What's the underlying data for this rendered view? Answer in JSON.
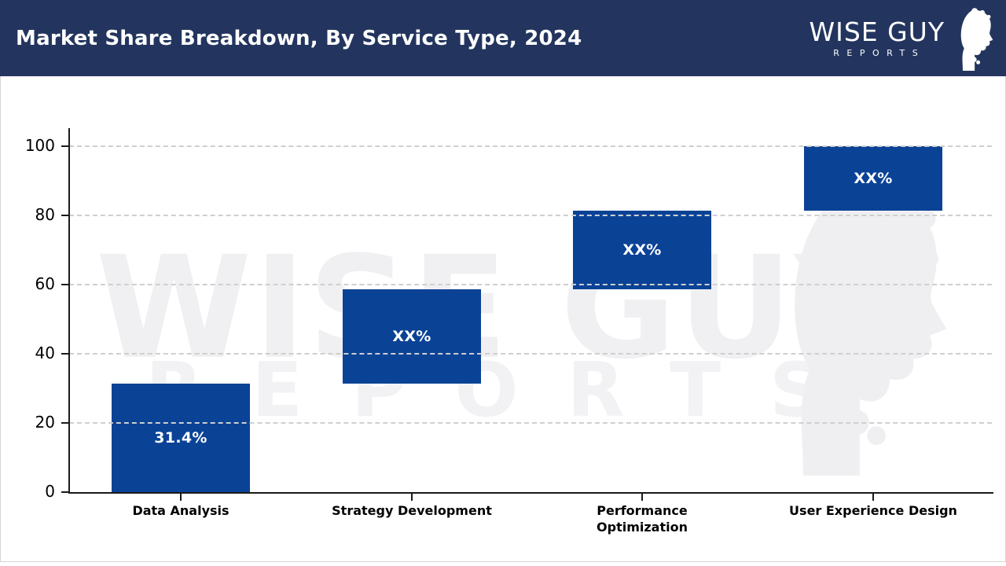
{
  "header": {
    "title": "Market Share Breakdown, By Service Type, 2024",
    "logo": {
      "line1": "WISE GUY",
      "line2": "REPORTS"
    }
  },
  "watermark": {
    "line1": "WISE GUY",
    "line2": "REPORTS"
  },
  "chart_data": {
    "type": "bar",
    "subtype": "waterfall",
    "title": "Market Share Breakdown, By Service Type, 2024",
    "categories": [
      "Data Analysis",
      "Strategy Development",
      "Performance Optimization",
      "User Experience Design"
    ],
    "bars": [
      {
        "category": "Data Analysis",
        "start": 0,
        "end": 31.4,
        "label": "31.4%"
      },
      {
        "category": "Strategy Development",
        "start": 31.4,
        "end": 58.6,
        "label": "XX%"
      },
      {
        "category": "Performance Optimization",
        "start": 58.6,
        "end": 81.4,
        "label": "XX%"
      },
      {
        "category": "User Experience Design",
        "start": 81.4,
        "end": 100,
        "label": "XX%"
      }
    ],
    "xlabel": "",
    "ylabel": "",
    "ylim": [
      0,
      100
    ],
    "yticks": [
      0,
      20,
      40,
      60,
      80,
      100
    ],
    "grid": "horizontal-dashed",
    "legend": "none",
    "bar_color": "#0a4296",
    "bar_label_color": "#ffffff"
  },
  "colors": {
    "header_bg": "#23355e",
    "bar": "#0a4296",
    "grid": "#cfcfcf",
    "axis": "#1a1a1a",
    "watermark": "#f0f0f3",
    "card_border": "#d6d6d6"
  }
}
